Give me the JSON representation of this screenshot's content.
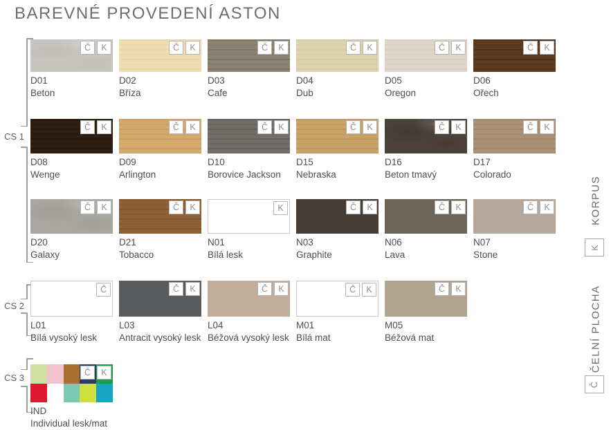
{
  "title": "BAREVNÉ PROVEDENÍ ASTON",
  "side": {
    "korpus_label": "KORPUS",
    "korpus_key": "K",
    "front_label": "ČELNÍ PLOCHA",
    "front_key": "Č"
  },
  "groups": [
    {
      "label": "CS 1",
      "rows": [
        [
          {
            "code": "D01",
            "name": "Beton",
            "badges": [
              "Č",
              "K"
            ],
            "texture": "concrete",
            "base": "#c8c5c0",
            "accent": "#aeaba6"
          },
          {
            "code": "D02",
            "name": "Bříza",
            "badges": [
              "Č",
              "K"
            ],
            "texture": "wood",
            "base": "#f0dcb2",
            "accent": "#e3cc97"
          },
          {
            "code": "D03",
            "name": "Cafe",
            "badges": [
              "Č",
              "K"
            ],
            "texture": "wood",
            "base": "#8b8271",
            "accent": "#6a6050"
          },
          {
            "code": "D04",
            "name": "Dub",
            "badges": [
              "Č",
              "K"
            ],
            "texture": "wood",
            "base": "#ddd2ae",
            "accent": "#ccbe8f"
          },
          {
            "code": "D05",
            "name": "Oregon",
            "badges": [
              "Č",
              "K"
            ],
            "texture": "wood",
            "base": "#ded7c9",
            "accent": "#c9c1b0"
          },
          {
            "code": "D06",
            "name": "Ořech",
            "badges": [
              "Č",
              "K"
            ],
            "texture": "wood",
            "base": "#5c3b21",
            "accent": "#36200c"
          }
        ],
        [
          {
            "code": "D08",
            "name": "Wenge",
            "badges": [
              "Č",
              "K"
            ],
            "texture": "wood",
            "base": "#2c1e11",
            "accent": "#170e06"
          },
          {
            "code": "D09",
            "name": "Arlington",
            "badges": [
              "Č",
              "K"
            ],
            "texture": "wood",
            "base": "#d4a96b",
            "accent": "#bc8b49"
          },
          {
            "code": "D10",
            "name": "Borovice Jackson",
            "badges": [
              "Č",
              "K"
            ],
            "texture": "wood",
            "base": "#716d69",
            "accent": "#4c4844"
          },
          {
            "code": "D15",
            "name": "Nebraska",
            "badges": [
              "Č",
              "K"
            ],
            "texture": "wood",
            "base": "#c9a269",
            "accent": "#ac8449"
          },
          {
            "code": "D16",
            "name": "Beton tmavý",
            "badges": [
              "Č",
              "K"
            ],
            "texture": "concrete",
            "base": "#4b433a",
            "accent": "#332c24"
          },
          {
            "code": "D17",
            "name": "Colorado",
            "badges": [
              "Č",
              "K"
            ],
            "texture": "wood",
            "base": "#a99176",
            "accent": "#8e7557"
          }
        ],
        [
          {
            "code": "D20",
            "name": "Galaxy",
            "badges": [
              "Č",
              "K"
            ],
            "texture": "concrete",
            "base": "#a9a6a1",
            "accent": "#908d88"
          },
          {
            "code": "D21",
            "name": "Tobacco",
            "badges": [
              "Č",
              "K"
            ],
            "texture": "wood",
            "base": "#8d6135",
            "accent": "#6f4a20"
          },
          {
            "code": "N01",
            "name": "Bílá lesk",
            "badges": [
              "K"
            ],
            "texture": "plain",
            "base": "#ffffff",
            "bordered": true
          },
          {
            "code": "N03",
            "name": "Graphite",
            "badges": [
              "Č",
              "K"
            ],
            "texture": "plain",
            "base": "#453c35"
          },
          {
            "code": "N06",
            "name": "Lava",
            "badges": [
              "Č",
              "K"
            ],
            "texture": "plain",
            "base": "#6c6359"
          },
          {
            "code": "N07",
            "name": "Stone",
            "badges": [
              "Č",
              "K"
            ],
            "texture": "plain",
            "base": "#b5a79a"
          }
        ]
      ]
    },
    {
      "label": "CS 2",
      "rows": [
        [
          {
            "code": "L01",
            "name": "Bílá vysoký lesk",
            "badges": [
              "Č"
            ],
            "texture": "plain",
            "base": "#ffffff",
            "bordered": true
          },
          {
            "code": "L03",
            "name": "Antracit vysoký lesk",
            "badges": [
              "Č",
              "K"
            ],
            "texture": "plain",
            "base": "#595b5c"
          },
          {
            "code": "L04",
            "name": "Béžová vysoký lesk",
            "badges": [
              "Č",
              "K"
            ],
            "texture": "plain",
            "base": "#c1ad99"
          },
          {
            "code": "M01",
            "name": "Bílá mat",
            "badges": [
              "Č",
              "K"
            ],
            "texture": "plain",
            "base": "#ffffff",
            "bordered": true
          },
          {
            "code": "M05",
            "name": "Béžová mat",
            "badges": [
              "Č",
              "K"
            ],
            "texture": "plain",
            "base": "#b2a38f"
          }
        ]
      ]
    },
    {
      "label": "CS 3",
      "rows": [
        [
          {
            "code": "IND",
            "name": "Individual lesk/mat",
            "badges": [
              "Č",
              "K"
            ],
            "texture": "patchwork",
            "cells_top": [
              "#cfe0a2",
              "#f2c3cd",
              "#a8702e",
              "#2a3a6e",
              "#1f9c48"
            ],
            "cells_bottom": [
              "#e0182f",
              "#ffffff",
              "#7bc9b3",
              "#cede3e",
              "#15a5c2"
            ]
          }
        ]
      ]
    }
  ]
}
